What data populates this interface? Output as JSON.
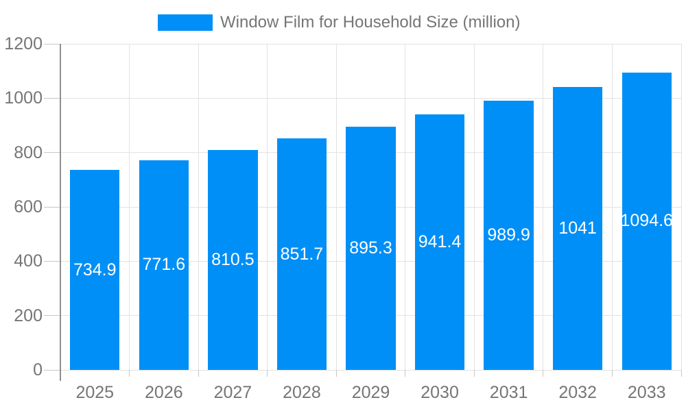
{
  "legend": {
    "label": "Window Film for Household Size (million)"
  },
  "chart_data": {
    "type": "bar",
    "title": "Window Film for Household Size (million)",
    "categories": [
      "2025",
      "2026",
      "2027",
      "2028",
      "2029",
      "2030",
      "2031",
      "2032",
      "2033"
    ],
    "values": [
      734.9,
      771.6,
      810.5,
      851.7,
      895.3,
      941.4,
      989.9,
      1041,
      1094.6
    ],
    "value_labels": [
      "734.9",
      "771.6",
      "810.5",
      "851.7",
      "895.3",
      "941.4",
      "989.9",
      "1041",
      "1094.6"
    ],
    "xlabel": "",
    "ylabel": "",
    "ylim": [
      0,
      1200
    ],
    "yticks": [
      0,
      200,
      400,
      600,
      800,
      1000,
      1200
    ],
    "grid": true,
    "legend_position": "top",
    "colors": {
      "bar": "#008ff7",
      "bar_label": "#ffffff",
      "axis_text": "#757575",
      "gridline": "#e2e2e2",
      "tick": "#c6c6c6",
      "axis_line": "#8f8f8f",
      "background": "#ffffff"
    }
  }
}
